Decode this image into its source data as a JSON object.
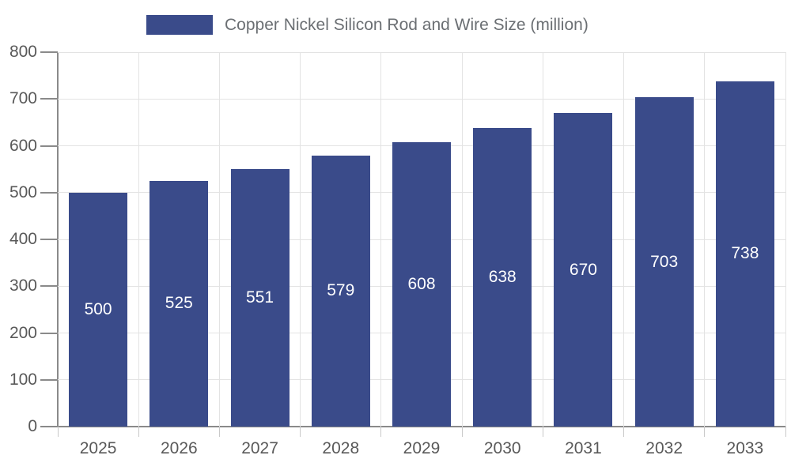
{
  "legend": {
    "label": "Copper Nickel Silicon Rod and Wire Size (million)",
    "swatch_color": "#3a4b8a"
  },
  "chart_data": {
    "type": "bar",
    "title": "Copper Nickel Silicon Rod and Wire Size (million)",
    "categories": [
      "2025",
      "2026",
      "2027",
      "2028",
      "2029",
      "2030",
      "2031",
      "2032",
      "2033"
    ],
    "values": [
      500,
      525,
      551,
      579,
      608,
      638,
      670,
      703,
      738
    ],
    "xlabel": "",
    "ylabel": "",
    "ylim": [
      0,
      800
    ],
    "ytick_step": 100,
    "yticks": [
      0,
      100,
      200,
      300,
      400,
      500,
      600,
      700,
      800
    ],
    "grid": true,
    "legend_position": "top",
    "bar_color": "#3a4b8a",
    "bar_label_color": "#ffffff",
    "axis_text_color": "#595959",
    "gridline_color": "#e3e3e3"
  }
}
